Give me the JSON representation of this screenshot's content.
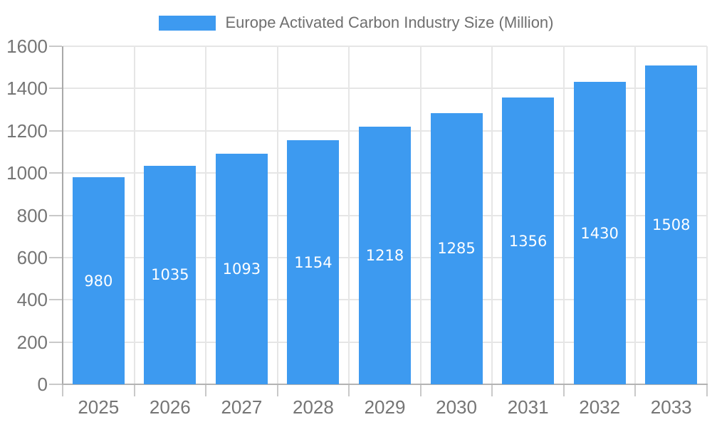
{
  "colors": {
    "bar": "#3D9AF0",
    "grid": "#E6E6E6",
    "x_axis": "#B3B3B3",
    "y_axis": "#A9A9A9",
    "tick": "#C9C9C9",
    "axis_label": "#757575",
    "legend_text": "#6F6F6F",
    "value_label": "#FFFFFF",
    "background": "#FFFFFF"
  },
  "legend": {
    "label": "Europe Activated Carbon Industry Size (Million)"
  },
  "chart_data": {
    "type": "bar",
    "title": "Europe Activated Carbon Industry Size (Million)",
    "series_name": "Europe Activated Carbon Industry Size (Million)",
    "categories": [
      "2025",
      "2026",
      "2027",
      "2028",
      "2029",
      "2030",
      "2031",
      "2032",
      "2033"
    ],
    "values": [
      980,
      1035,
      1093,
      1154,
      1218,
      1285,
      1356,
      1430,
      1508
    ],
    "xlabel": "",
    "ylabel": "",
    "ylim": [
      0,
      1600
    ],
    "yticks": [
      0,
      200,
      400,
      600,
      800,
      1000,
      1200,
      1400,
      1600
    ],
    "grid": true,
    "legend_position": "top",
    "value_label_position": "inside-center"
  }
}
